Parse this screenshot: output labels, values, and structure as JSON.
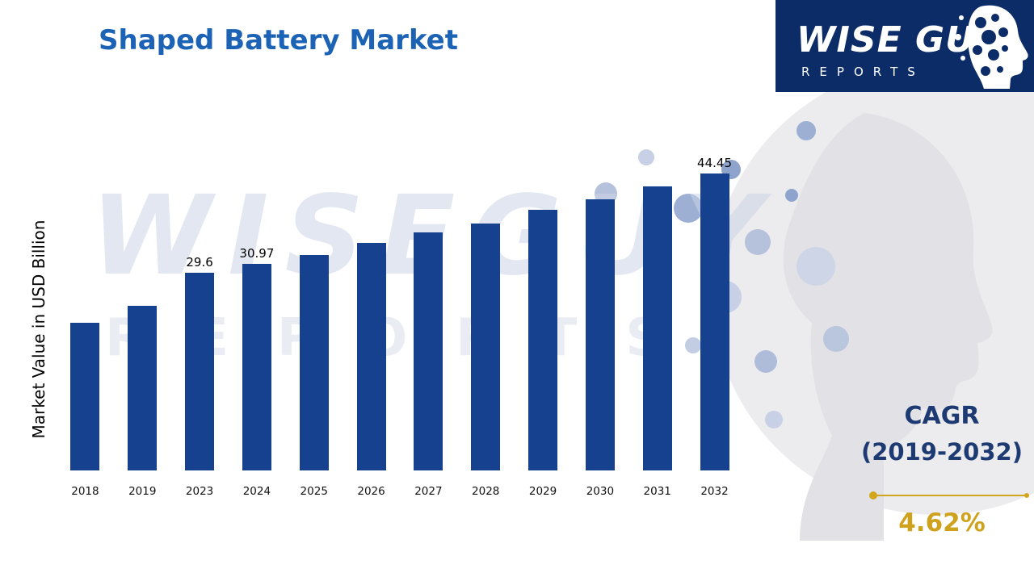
{
  "page": {
    "title": "Shaped Battery Market"
  },
  "brand": {
    "name": "WISE GUY",
    "sub": "REPORTS"
  },
  "watermark": {
    "line1": "WISEGUY",
    "line2": "REPORTS"
  },
  "cagr": {
    "label": "CAGR",
    "range": "(2019-2032)",
    "value": "4.62%"
  },
  "chart_data": {
    "type": "bar",
    "title": "Shaped Battery Market",
    "xlabel": "",
    "ylabel": "Market Value in USD Billion",
    "categories": [
      "2018",
      "2019",
      "2023",
      "2024",
      "2025",
      "2026",
      "2027",
      "2028",
      "2029",
      "2030",
      "2031",
      "2032"
    ],
    "values": [
      22.1,
      24.6,
      29.6,
      30.97,
      32.3,
      34.0,
      35.6,
      37.0,
      39.0,
      40.6,
      42.5,
      44.45
    ],
    "bar_labels": [
      "",
      "",
      "29.6",
      "30.97",
      "",
      "",
      "",
      "",
      "",
      "",
      "",
      "44.45"
    ],
    "bar_color": "#16418f",
    "value_label_color": "#000000",
    "ylim": [
      0,
      46
    ],
    "grid": false,
    "legend": false,
    "accent_colors": {
      "title_blue": "#1c63b6",
      "cagr_navy": "#1d3b72",
      "gold": "#cfa21e",
      "logo_navy": "#0c2c68"
    }
  }
}
